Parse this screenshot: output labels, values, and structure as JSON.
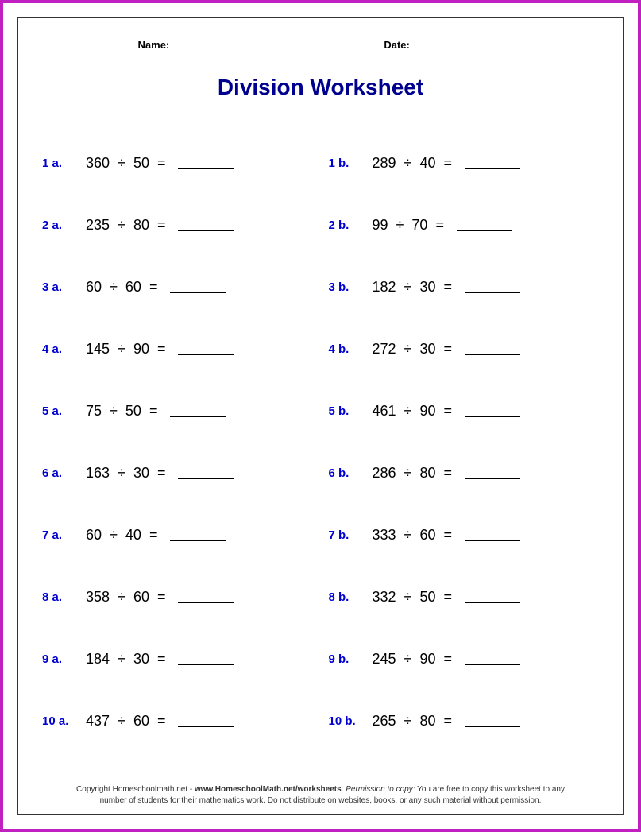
{
  "header": {
    "name_label": "Name:",
    "date_label": "Date:"
  },
  "title": "Division Worksheet",
  "label_color": "#0000d0",
  "title_color": "#000090",
  "border_color": "#c020c0",
  "operator": "÷",
  "equals": "=",
  "problems": {
    "rows": [
      {
        "a": {
          "label": "1 a.",
          "lhs": 360,
          "rhs": 50
        },
        "b": {
          "label": "1 b.",
          "lhs": 289,
          "rhs": 40
        }
      },
      {
        "a": {
          "label": "2 a.",
          "lhs": 235,
          "rhs": 80
        },
        "b": {
          "label": "2 b.",
          "lhs": 99,
          "rhs": 70
        }
      },
      {
        "a": {
          "label": "3 a.",
          "lhs": 60,
          "rhs": 60
        },
        "b": {
          "label": "3 b.",
          "lhs": 182,
          "rhs": 30
        }
      },
      {
        "a": {
          "label": "4 a.",
          "lhs": 145,
          "rhs": 90
        },
        "b": {
          "label": "4 b.",
          "lhs": 272,
          "rhs": 30
        }
      },
      {
        "a": {
          "label": "5 a.",
          "lhs": 75,
          "rhs": 50
        },
        "b": {
          "label": "5 b.",
          "lhs": 461,
          "rhs": 90
        }
      },
      {
        "a": {
          "label": "6 a.",
          "lhs": 163,
          "rhs": 30
        },
        "b": {
          "label": "6 b.",
          "lhs": 286,
          "rhs": 80
        }
      },
      {
        "a": {
          "label": "7 a.",
          "lhs": 60,
          "rhs": 40
        },
        "b": {
          "label": "7 b.",
          "lhs": 333,
          "rhs": 60
        }
      },
      {
        "a": {
          "label": "8 a.",
          "lhs": 358,
          "rhs": 60
        },
        "b": {
          "label": "8 b.",
          "lhs": 332,
          "rhs": 50
        }
      },
      {
        "a": {
          "label": "9 a.",
          "lhs": 184,
          "rhs": 30
        },
        "b": {
          "label": "9 b.",
          "lhs": 245,
          "rhs": 90
        }
      },
      {
        "a": {
          "label": "10 a.",
          "lhs": 437,
          "rhs": 60
        },
        "b": {
          "label": "10 b.",
          "lhs": 265,
          "rhs": 80
        }
      }
    ]
  },
  "footer": {
    "line1_a": "Copyright Homeschoolmath.net - ",
    "line1_b": "www.HomeschoolMath.net/worksheets",
    "line1_c": ". ",
    "line1_d": "Permission to copy:",
    "line1_e": " You are free to copy this worksheet to any",
    "line2": "number of students for their mathematics work. Do not distribute on websites, books, or any such material without permission."
  }
}
